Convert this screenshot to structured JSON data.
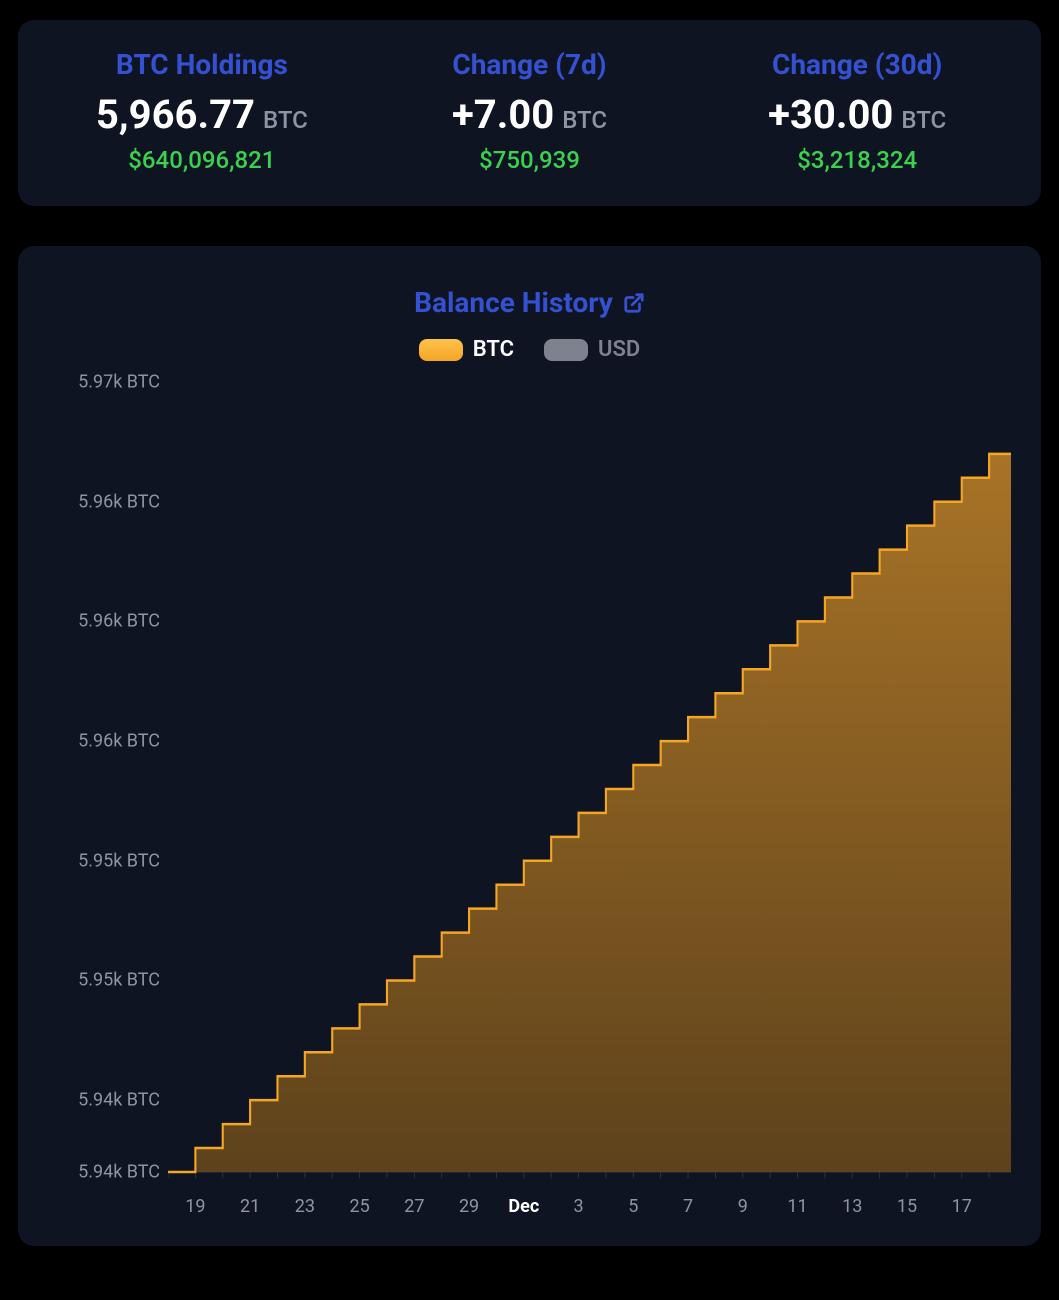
{
  "stats": [
    {
      "label": "BTC Holdings",
      "value": "5,966.77",
      "unit": "BTC",
      "usd": "$640,096,821"
    },
    {
      "label": "Change (7d)",
      "value": "+7.00",
      "unit": "BTC",
      "usd": "$750,939"
    },
    {
      "label": "Change (30d)",
      "value": "+30.00",
      "unit": "BTC",
      "usd": "$3,218,324"
    }
  ],
  "chart": {
    "title": "Balance History",
    "type": "area-step",
    "legend": {
      "btc": {
        "label": "BTC",
        "pill_color": "#f5a623",
        "label_color": "#ffffff",
        "active": true
      },
      "usd": {
        "label": "USD",
        "pill_color": "#7d828e",
        "label_color": "#7d828e",
        "active": false
      }
    },
    "y_axis": {
      "ticks": [
        "5.97k BTC",
        "5.96k BTC",
        "5.96k BTC",
        "5.96k BTC",
        "5.95k BTC",
        "5.95k BTC",
        "5.94k BTC",
        "5.94k BTC"
      ],
      "tick_values": [
        5970,
        5965,
        5960,
        5955,
        5950,
        5945,
        5940,
        5937
      ],
      "ylim": [
        5937,
        5970
      ],
      "label_color": "#8e94a3",
      "label_fontsize": 18
    },
    "x_axis": {
      "ticks": [
        "19",
        "21",
        "23",
        "25",
        "27",
        "29",
        "Dec",
        "3",
        "5",
        "7",
        "9",
        "11",
        "13",
        "15",
        "17"
      ],
      "tick_positions": [
        1,
        3,
        5,
        7,
        9,
        11,
        13,
        15,
        17,
        19,
        21,
        23,
        25,
        27,
        29
      ],
      "bold_ticks": [
        "Dec"
      ],
      "label_color": "#8e94a3",
      "label_fontsize": 18
    },
    "series": {
      "line_color": "#f5a623",
      "line_width": 2.5,
      "fill_top_color": "#c38428",
      "fill_bottom_color": "#6b4a1a",
      "fill_opacity": 0.85,
      "n_points": 31,
      "values": [
        5937.0,
        5938.0,
        5939.0,
        5940.0,
        5941.0,
        5942.0,
        5943.0,
        5944.0,
        5945.0,
        5946.0,
        5947.0,
        5948.0,
        5949.0,
        5950.0,
        5951.0,
        5952.0,
        5953.0,
        5954.0,
        5955.0,
        5956.0,
        5957.0,
        5958.0,
        5959.0,
        5960.0,
        5961.0,
        5962.0,
        5963.0,
        5964.0,
        5965.0,
        5966.0,
        5967.0
      ]
    },
    "background_color": "#0f1422",
    "axis_line_color": "#32384a"
  },
  "colors": {
    "page_bg": "#000000",
    "card_bg": "#0f1422",
    "accent_blue": "#3451d1",
    "text_white": "#ffffff",
    "text_muted": "#8e94a3",
    "text_green": "#3ad14e",
    "btc_orange": "#f5a623"
  }
}
